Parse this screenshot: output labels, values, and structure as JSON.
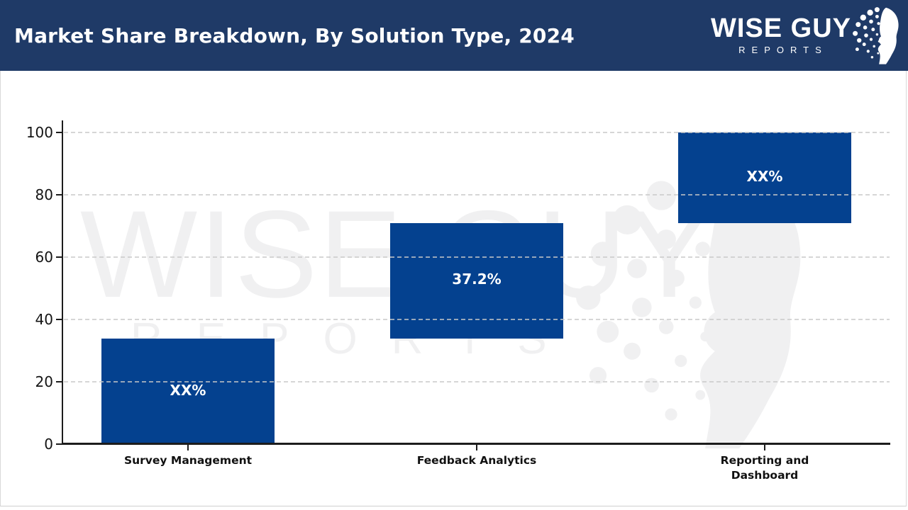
{
  "header": {
    "title": "Market Share Breakdown, By Solution Type, 2024",
    "logo": {
      "brand": "WISE GUY",
      "sub": "REPORTS"
    }
  },
  "watermark": {
    "brand": "WISE GUY",
    "sub": "REPORTS"
  },
  "colors": {
    "header_bg": "#1f3a67",
    "bar": "#04418f",
    "bar_label": "#ffffff",
    "axis": "#1c1c1c",
    "grid": "#c9c9c9",
    "watermark": "#f0f0f1"
  },
  "chart_data": {
    "type": "bar",
    "subtype": "floating-stacked-percentage-waterfall",
    "title": "Market Share Breakdown, By Solution Type, 2024",
    "categories": [
      "Survey Management",
      "Feedback Analytics",
      "Reporting and Dashboard"
    ],
    "category_label_lines": [
      [
        "Survey Management"
      ],
      [
        "Feedback Analytics"
      ],
      [
        "Reporting and",
        "Dashboard"
      ]
    ],
    "bars": [
      {
        "category": "Survey Management",
        "start": 0,
        "end": 33.8,
        "value_label": "XX%"
      },
      {
        "category": "Feedback Analytics",
        "start": 33.8,
        "end": 71.0,
        "value_label": "37.2%"
      },
      {
        "category": "Reporting and Dashboard",
        "start": 71.0,
        "end": 100,
        "value_label": "XX%"
      }
    ],
    "ylim": [
      0,
      100
    ],
    "yticks": [
      0,
      20,
      40,
      60,
      80,
      100
    ],
    "xlabel": "",
    "ylabel": "",
    "grid": "horizontal-dashed",
    "legend": "none"
  }
}
